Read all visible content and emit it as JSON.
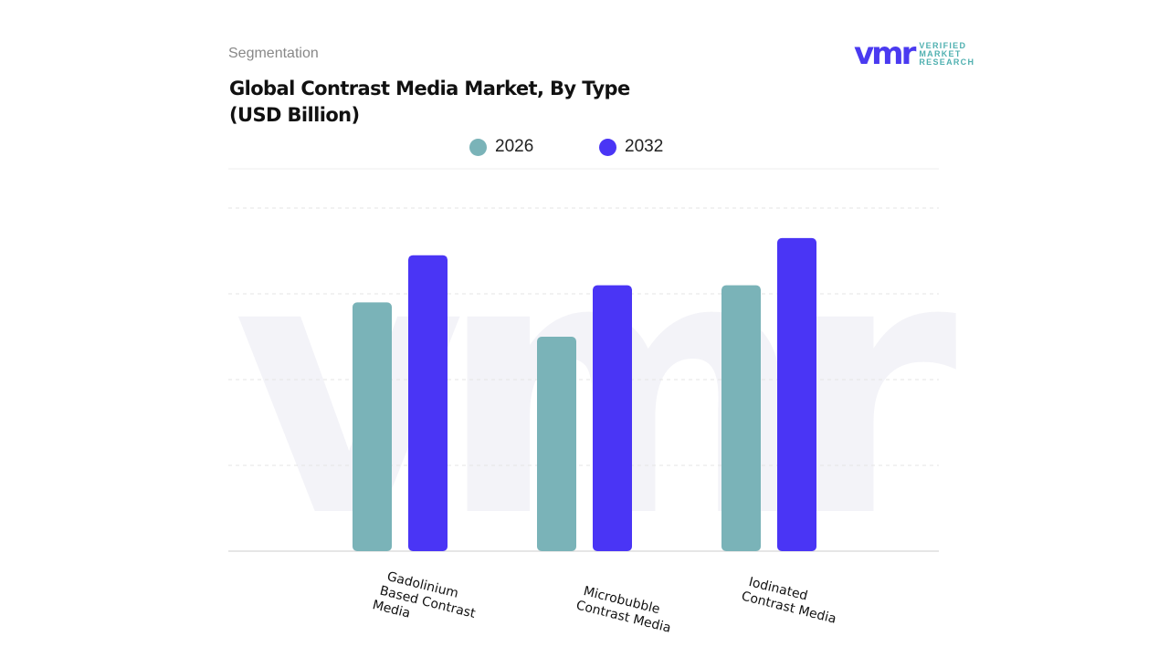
{
  "header": {
    "section": "Segmentation",
    "title_line1": "Global Contrast Media Market, By Type",
    "title_line2": "(USD Billion)"
  },
  "logo": {
    "mark": "vmr",
    "line1": "VERIFIED",
    "line2": "MARKET",
    "line3": "RESEARCH"
  },
  "colors": {
    "2026": "#7ab3b8",
    "2032": "#4a35f5"
  },
  "chart_data": {
    "type": "bar",
    "title": "Global Contrast Media Market, By Type (USD Billion)",
    "categories": [
      "Gadolinium Based Contrast Media",
      "Microbubble Contrast Media",
      "Iodinated Contrast Media"
    ],
    "category_lines": [
      [
        "Gadolinium",
        "Based Contrast",
        "Media"
      ],
      [
        "Microbubble",
        "Contrast Media"
      ],
      [
        "Iodinated",
        "Contrast Media"
      ]
    ],
    "series": [
      {
        "name": "2026",
        "values": [
          2.9,
          2.5,
          3.1
        ]
      },
      {
        "name": "2032",
        "values": [
          3.45,
          3.1,
          3.65
        ]
      }
    ],
    "ylim": [
      0,
      4
    ],
    "grid": true,
    "legend": "top-center",
    "xlabel": "",
    "ylabel": ""
  }
}
